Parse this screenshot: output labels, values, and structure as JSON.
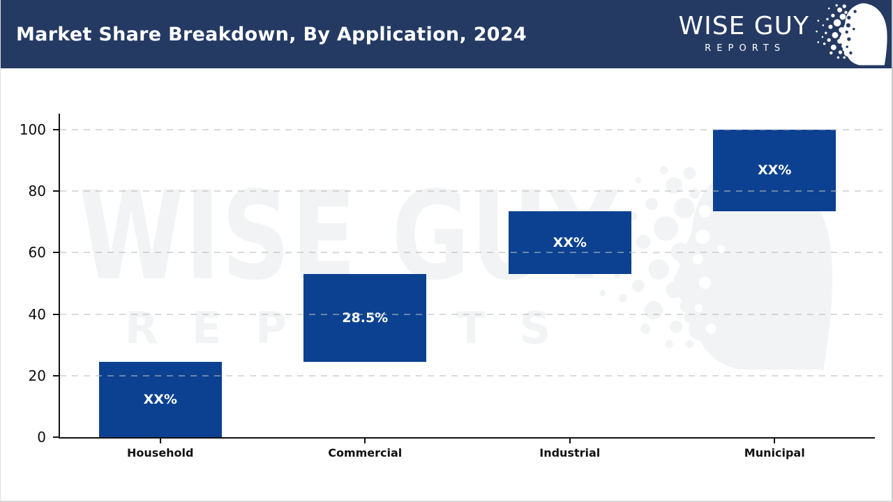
{
  "header": {
    "title": "Market Share Breakdown, By Application, 2024",
    "logo": {
      "name": "WISE GUY",
      "subname": "REPORTS"
    }
  },
  "watermark": {
    "line1": "WISE GUY",
    "line2": "REPORTS"
  },
  "chart_data": {
    "type": "bar",
    "subtype": "floating-waterfall",
    "title": "Market Share Breakdown, By Application, 2024",
    "categories": [
      "Household",
      "Commercial",
      "Industrial",
      "Municipal"
    ],
    "segments": [
      {
        "category": "Household",
        "start": 0,
        "end": 24.5,
        "label": "XX%"
      },
      {
        "category": "Commercial",
        "start": 24.5,
        "end": 53,
        "label": "28.5%"
      },
      {
        "category": "Industrial",
        "start": 53,
        "end": 73.5,
        "label": "XX%"
      },
      {
        "category": "Municipal",
        "start": 73.5,
        "end": 100,
        "label": "XX%"
      }
    ],
    "ylim": [
      0,
      100
    ],
    "yticks": [
      "0",
      "20",
      "40",
      "60",
      "80",
      "100"
    ],
    "xlabel": "",
    "ylabel": "",
    "grid": "horizontal-dashed",
    "legend": "none",
    "colors": {
      "bar": "#0b4190",
      "bar_label": "#ffffff",
      "axis": "#111111",
      "gridline": "rgba(187,187,187,0.55)",
      "header_bg": "#243a63",
      "watermark": "#f2f3f5"
    }
  }
}
